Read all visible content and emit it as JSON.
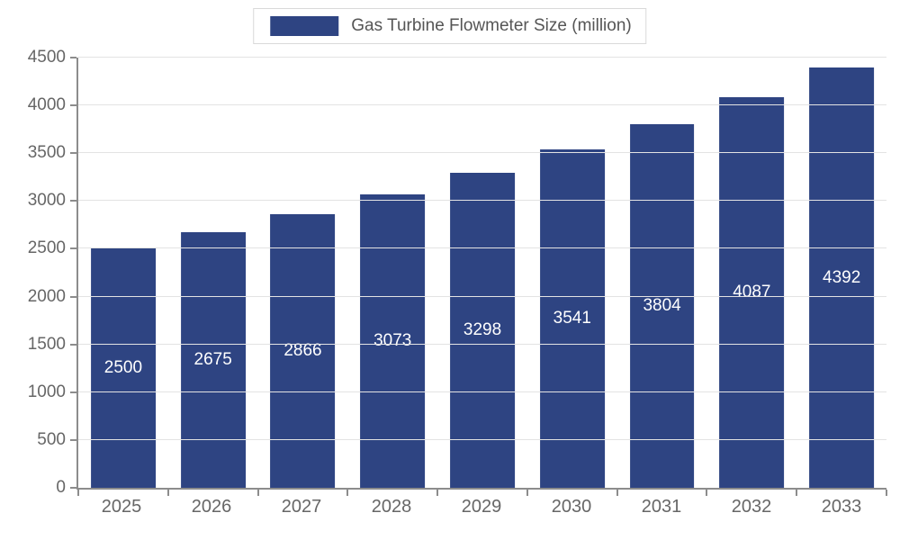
{
  "chart_data": {
    "type": "bar",
    "title": "Gas Turbine Flowmeter Size (million)",
    "categories": [
      "2025",
      "2026",
      "2027",
      "2028",
      "2029",
      "2030",
      "2031",
      "2032",
      "2033"
    ],
    "values": [
      2500,
      2675,
      2866,
      3073,
      3298,
      3541,
      3804,
      4087,
      4392
    ],
    "xlabel": "",
    "ylabel": "",
    "ylim": [
      0,
      4500
    ],
    "yticks": [
      0,
      500,
      1000,
      1500,
      2000,
      2500,
      3000,
      3500,
      4000,
      4500
    ],
    "grid": true,
    "legend_position": "top-center",
    "bar_color": "#2e4482",
    "value_label_color": "#ffffff",
    "axis_color": "#8c8c8c",
    "tick_label_color": "#666666",
    "gridline_color": "#e3e3e3"
  }
}
